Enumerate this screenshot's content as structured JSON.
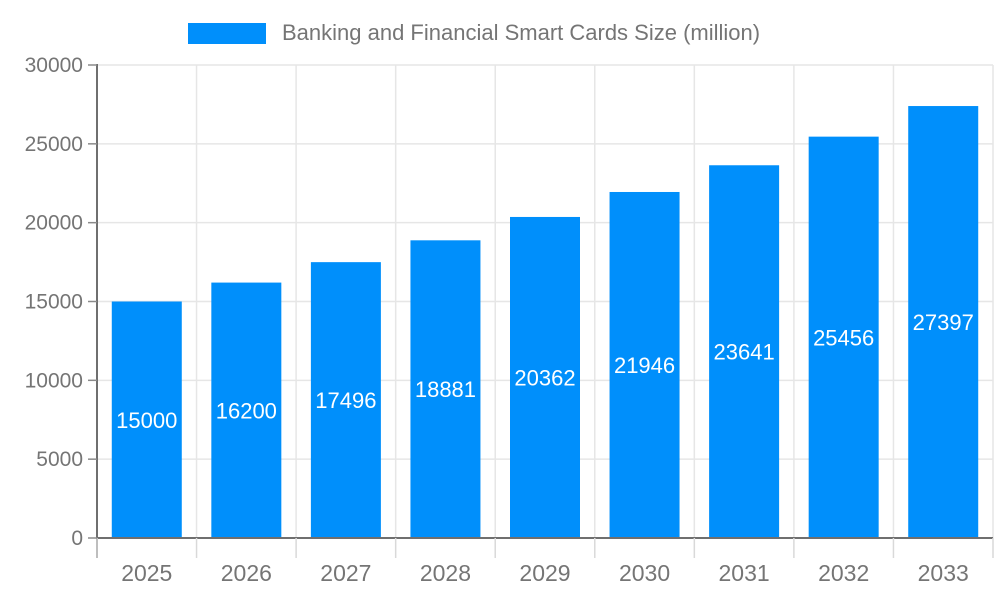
{
  "legend": {
    "label": "Banking and Financial Smart Cards Size (million)"
  },
  "chart_data": {
    "type": "bar",
    "title": "Banking and Financial Smart Cards Size (million)",
    "categories": [
      "2025",
      "2026",
      "2027",
      "2028",
      "2029",
      "2030",
      "2031",
      "2032",
      "2033"
    ],
    "values": [
      15000,
      16200,
      17496,
      18881,
      20362,
      21946,
      23641,
      25456,
      27397
    ],
    "xlabel": "",
    "ylabel": "",
    "ylim": [
      0,
      30000
    ],
    "y_ticks": [
      0,
      5000,
      10000,
      15000,
      20000,
      25000,
      30000
    ],
    "grid": true,
    "legend_position": "top",
    "colors": {
      "bar": "#008FFB",
      "bar_label": "#FFFFFF",
      "axis_text": "#757575",
      "axis_line": "#6F6F6F",
      "gridline": "#E6E6E6",
      "x_tick": "#D9D9D9",
      "y_tick": "#8A8A8A",
      "background": "#FFFFFF"
    }
  }
}
